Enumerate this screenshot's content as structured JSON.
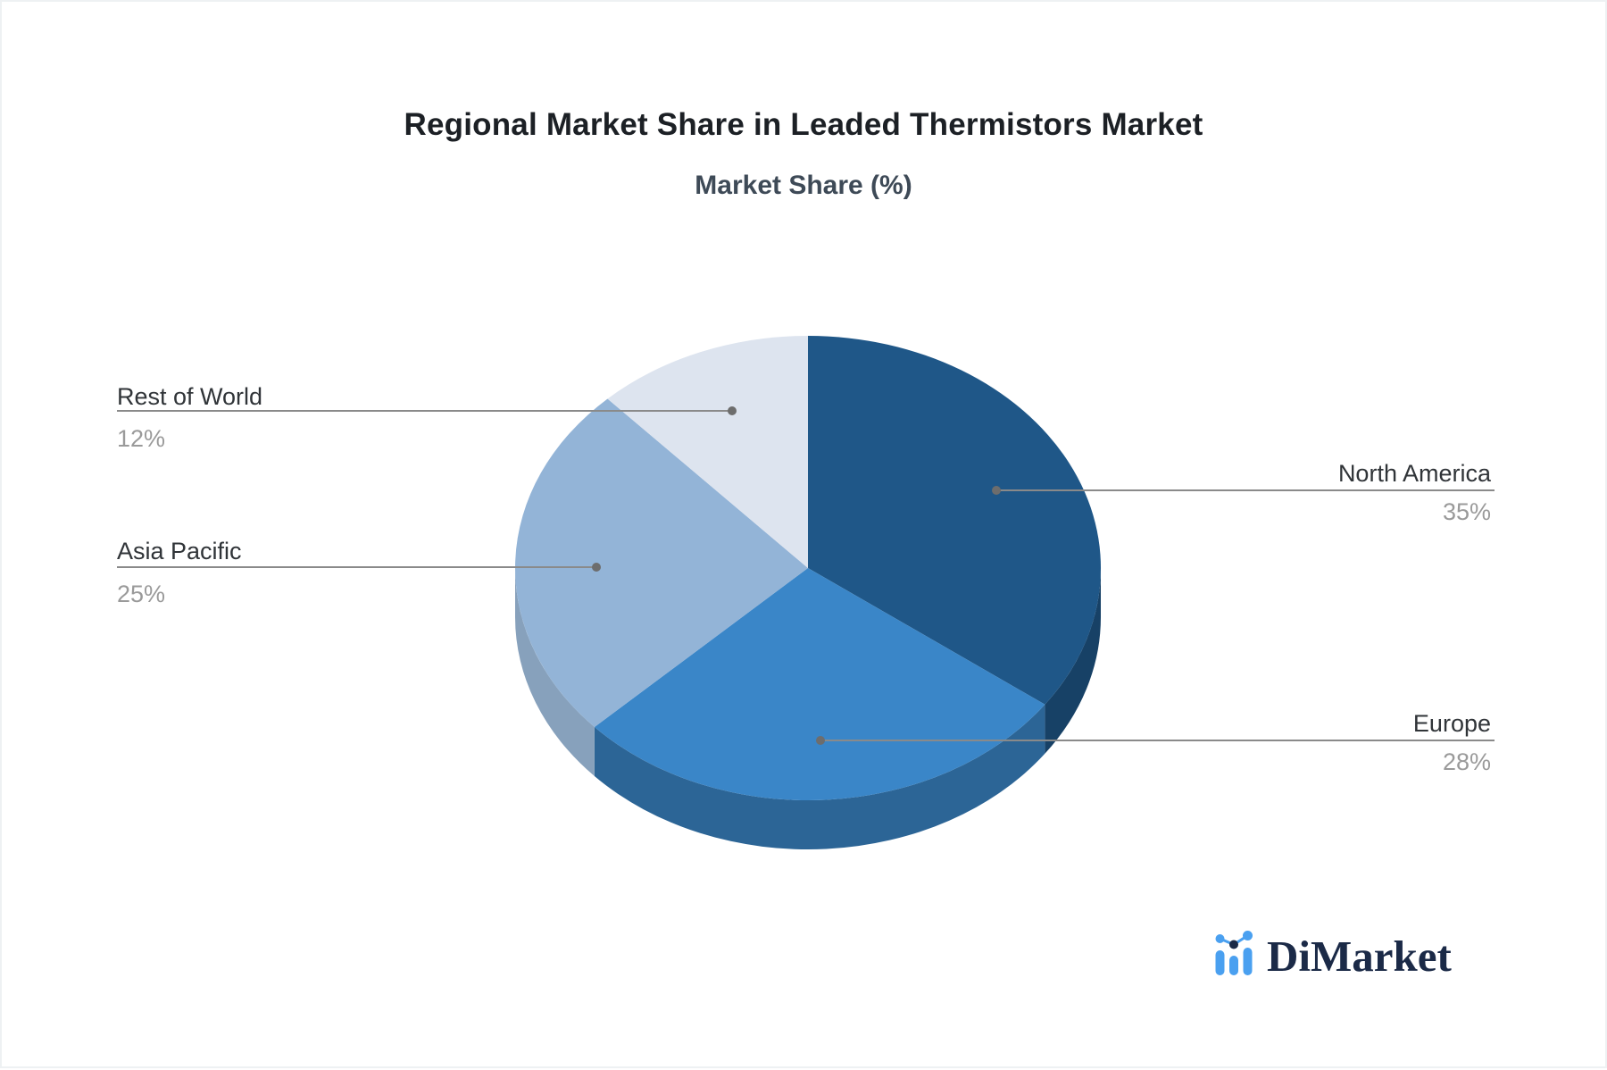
{
  "page": {
    "background_color": "#ffffff",
    "border_color": "#eef1f3"
  },
  "header": {
    "title": "Regional Market Share in Leaded Thermistors Market",
    "subtitle": "Market Share (%)",
    "title_color": "#1c2025",
    "subtitle_color": "#3e4a57"
  },
  "chart_data": {
    "type": "pie",
    "effect": "3d",
    "title": "Regional Market Share in Leaded Thermistors Market",
    "subtitle": "Market Share (%)",
    "unit": "%",
    "start_angle_deg": 0,
    "direction": "clockwise",
    "legend_position": "callout-labels",
    "categories": [
      "North America",
      "Europe",
      "Asia Pacific",
      "Rest of World"
    ],
    "values": [
      35,
      28,
      25,
      12
    ],
    "value_labels": [
      "35%",
      "28%",
      "25%",
      "12%"
    ],
    "colors": [
      "#1f5788",
      "#3a86c8",
      "#93b4d7",
      "#dde4ef"
    ],
    "side_colors": [
      "#174166",
      "#2c6596",
      "#87a1bc",
      "#c9d2e0"
    ],
    "label_name_color": "#303438",
    "label_value_color": "#9a9a9a",
    "leader_line_color": "#8a8a8a",
    "leader_dot_color": "#6d6d6d"
  },
  "logo": {
    "text": "DiMarket",
    "icon": "bar-line-chart-icon",
    "icon_color": "#4aa0f0",
    "text_color": "#1b2a47"
  }
}
